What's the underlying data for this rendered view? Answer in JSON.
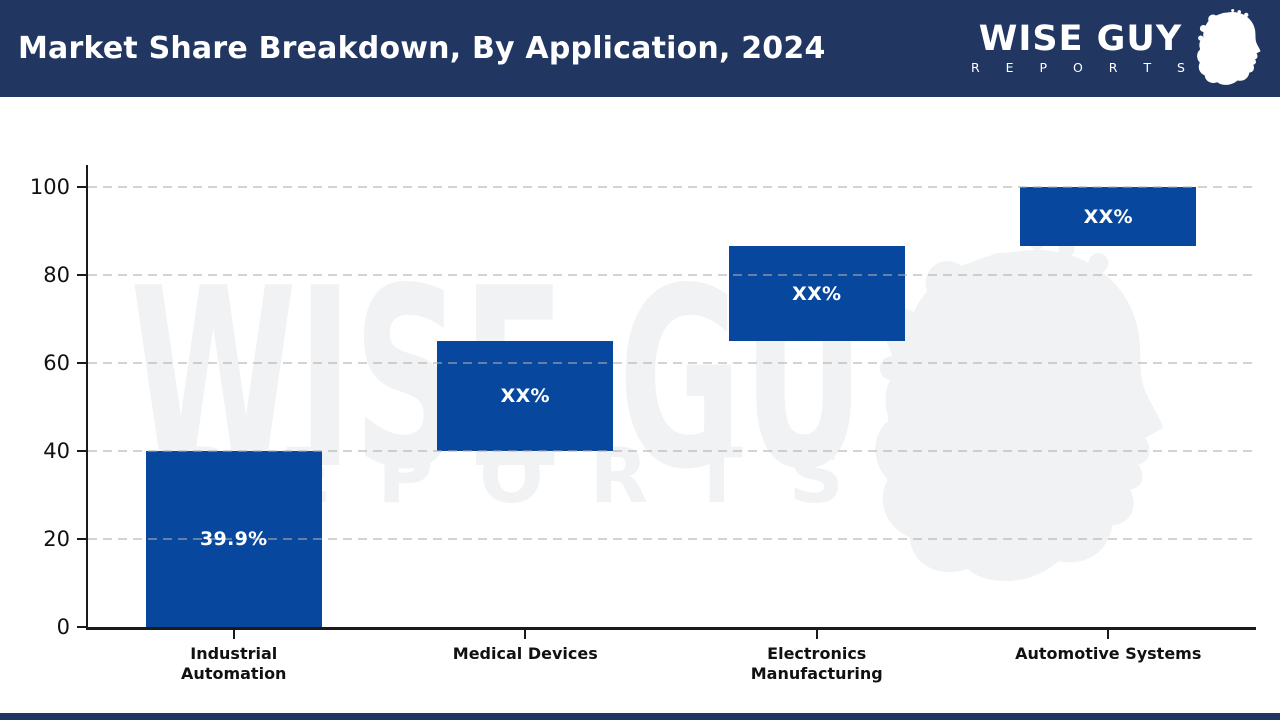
{
  "header": {
    "title": "Market Share Breakdown, By Application, 2024",
    "bg_color": "#213661",
    "logo": {
      "primary": "WISE GUY",
      "secondary": "R E P O R T S"
    }
  },
  "watermark": {
    "primary": "WISE GUY",
    "secondary": "REPORTS",
    "color": "#f1f2f4"
  },
  "chart_data": {
    "type": "bar",
    "variant": "waterfall",
    "title": "Market Share Breakdown, By Application, 2024",
    "categories": [
      [
        "Industrial",
        "Automation"
      ],
      [
        "Medical Devices"
      ],
      [
        "Electronics",
        "Manufacturing"
      ],
      [
        "Automotive Systems"
      ]
    ],
    "segments": [
      {
        "category": "Industrial Automation",
        "start": 0,
        "end": 39.9,
        "label": "39.9%"
      },
      {
        "category": "Medical Devices",
        "start": 39.9,
        "end": 65,
        "label": "XX%"
      },
      {
        "category": "Electronics Manufacturing",
        "start": 65,
        "end": 86.5,
        "label": "XX%"
      },
      {
        "category": "Automotive Systems",
        "start": 86.5,
        "end": 100,
        "label": "XX%"
      }
    ],
    "ylim": [
      0,
      100
    ],
    "yticks": [
      0,
      20,
      40,
      60,
      80,
      100
    ],
    "xlabel": "",
    "ylabel": "",
    "bar_color": "#07489e",
    "grid": {
      "axis": "y",
      "style": "dashed",
      "color": "rgba(175,175,175,0.55)"
    },
    "legend": null
  },
  "footer": {
    "bg_color": "#213661"
  }
}
